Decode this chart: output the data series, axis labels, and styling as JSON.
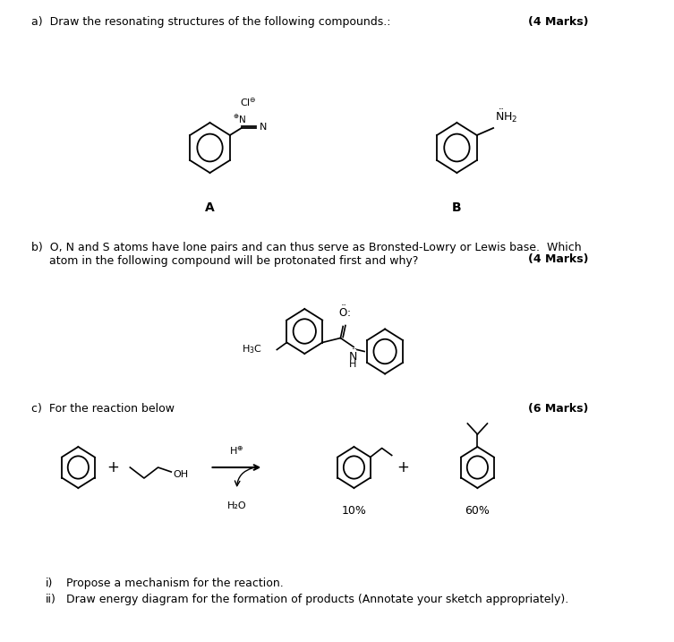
{
  "title_a": "a)  Draw the resonating structures of the following compounds.:",
  "marks_a": "(4 Marks)",
  "label_A": "A",
  "label_B": "B",
  "title_b": "b)  O, N and S atoms have lone pairs and can thus serve as Bronsted-Lowry or Lewis base.  Which\n     atom in the following compound will be protonated first and why?",
  "marks_b": "(4 Marks)",
  "title_c": "c)  For the reaction below",
  "marks_c": "(6 Marks)",
  "percent_1": "10%",
  "percent_2": "60%",
  "h2o": "H₂O",
  "h_plus": "H⊕",
  "sub_i": "i)",
  "sub_ii": "ii)",
  "text_i": "Propose a mechanism for the reaction.",
  "text_ii": "Draw energy diagram for the formation of products (Annotate your sketch appropriately).",
  "bg_color": "#ffffff",
  "text_color": "#000000",
  "font_size_main": 9,
  "font_size_label": 10
}
